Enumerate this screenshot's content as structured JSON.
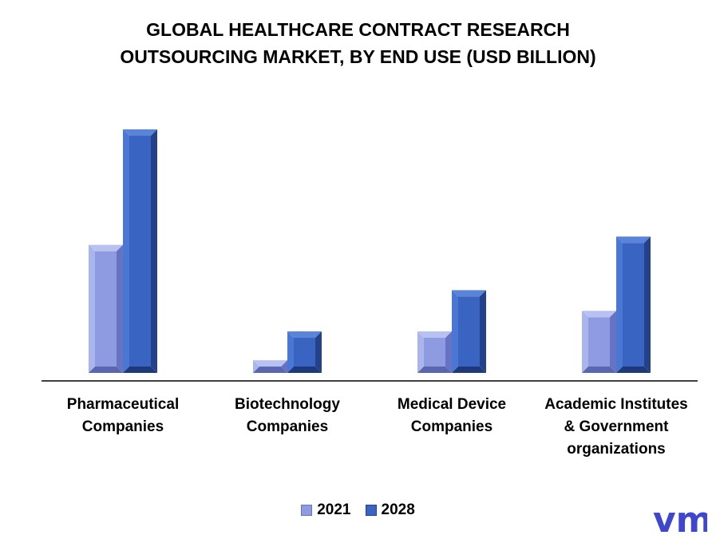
{
  "title_lines": [
    "GLOBAL HEALTHCARE CONTRACT RESEARCH",
    "OUTSOURCING MARKET, BY END USE (USD BILLION)"
  ],
  "chart_data": {
    "type": "bar",
    "categories": [
      [
        "Pharmaceutical",
        "Companies"
      ],
      [
        "Biotechnology",
        "Companies"
      ],
      [
        "Medical Device",
        "Companies"
      ],
      [
        "Academic Institutes",
        "& Government",
        "organizations"
      ]
    ],
    "series": [
      {
        "name": "2021",
        "values": [
          16.5,
          2.5,
          6.0,
          8.5
        ]
      },
      {
        "name": "2028",
        "values": [
          30.5,
          6.0,
          11.0,
          17.5
        ]
      }
    ],
    "ylim": [
      0,
      32
    ],
    "grid": false,
    "legend_position": "bottom"
  },
  "colors": {
    "series_2021": {
      "front": "#8f9be0",
      "left": "#aab5ee",
      "right": "#6673c2",
      "top": "#b8c2f2",
      "bottom": "#5a66b0",
      "inner": "#8f9be0"
    },
    "series_2028": {
      "front": "#3a64c2",
      "left": "#4a76d4",
      "right": "#24428a",
      "top": "#5a84d8",
      "bottom": "#1e3a7a",
      "inner": "#3a64c2"
    },
    "logo": "#3f48cc"
  },
  "logo_text": "vmr"
}
